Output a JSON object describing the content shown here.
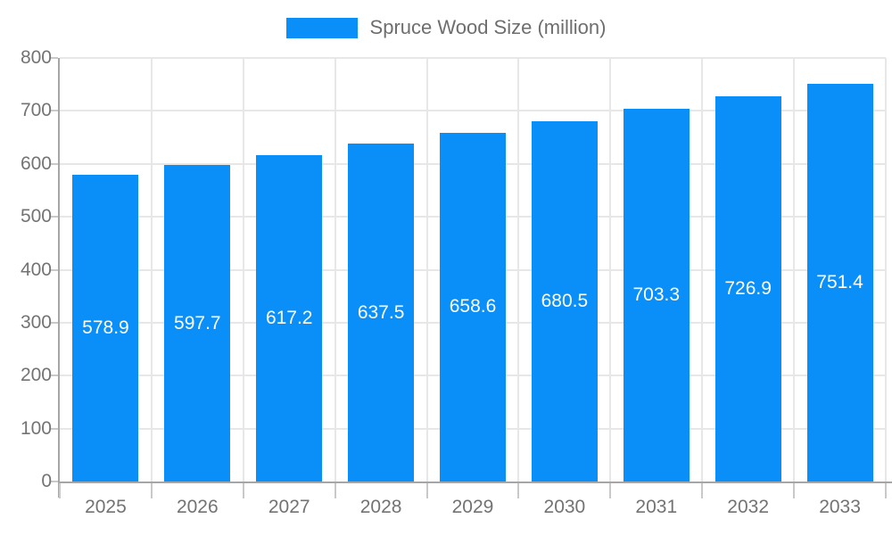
{
  "legend": {
    "label": "Spruce Wood Size (million)",
    "swatch_color": "#0a8ef8"
  },
  "chart_data": {
    "type": "bar",
    "title": "Spruce Wood Size (million)",
    "categories": [
      "2025",
      "2026",
      "2027",
      "2028",
      "2029",
      "2030",
      "2031",
      "2032",
      "2033"
    ],
    "series": [
      {
        "name": "Spruce Wood Size (million)",
        "values": [
          578.9,
          597.7,
          617.2,
          637.5,
          658.6,
          680.5,
          703.3,
          726.9,
          751.4
        ]
      }
    ],
    "value_labels": [
      "578.9",
      "597.7",
      "617.2",
      "637.5",
      "658.6",
      "680.5",
      "703.3",
      "726.9",
      "751.4"
    ],
    "xlabel": "",
    "ylabel": "",
    "ylim": [
      0,
      800
    ],
    "yticks": [
      0,
      100,
      200,
      300,
      400,
      500,
      600,
      700,
      800
    ],
    "grid": true,
    "legend_position": "top",
    "colors": {
      "bar": "#0a8ef8",
      "grid": "#e7e7e7",
      "axis": "#a6a6a6",
      "tick": "#c9c9c9",
      "axis_text": "#737373",
      "legend_text": "#6e6e6e",
      "value_text": "#ffffff"
    }
  }
}
